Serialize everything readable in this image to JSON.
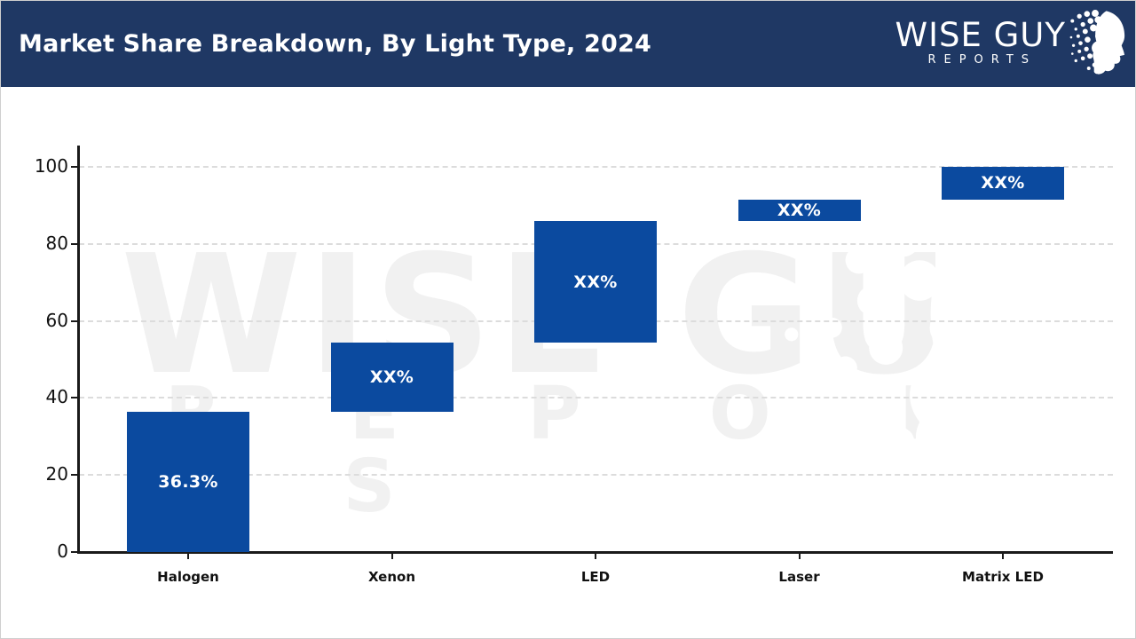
{
  "header": {
    "title": "Market Share Breakdown, By Light Type, 2024",
    "brand": {
      "line1": "WISE GUY",
      "line2": "REPORTS"
    }
  },
  "watermark": {
    "line1": "WISE GUY",
    "line2": "R E P O R T S"
  },
  "colors": {
    "header_bg": "#1f3864",
    "bar": "#0b4a9f",
    "grid": "#dcdcdc",
    "axis": "#1a1a1a",
    "watermark": "#f1f1f1",
    "bar_label_text": "#ffffff"
  },
  "chart_data": {
    "type": "bar",
    "subtype": "waterfall",
    "title": "Market Share Breakdown, By Light Type, 2024",
    "xlabel": "",
    "ylabel": "",
    "categories": [
      "Halogen",
      "Xenon",
      "LED",
      "Laser",
      "Matrix LED"
    ],
    "bars": [
      {
        "category": "Halogen",
        "start": 0,
        "end": 36.3,
        "value": 36.3,
        "label": "36.3%"
      },
      {
        "category": "Xenon",
        "start": 36.3,
        "end": 54.3,
        "value": 18.0,
        "label": "XX%"
      },
      {
        "category": "LED",
        "start": 54.3,
        "end": 86.0,
        "value": 31.7,
        "label": "XX%"
      },
      {
        "category": "Laser",
        "start": 86.0,
        "end": 91.5,
        "value": 5.5,
        "label": "XX%"
      },
      {
        "category": "Matrix LED",
        "start": 91.5,
        "end": 100.0,
        "value": 8.5,
        "label": "XX%"
      }
    ],
    "ylim": [
      0,
      100
    ],
    "yticks": [
      0,
      20,
      40,
      60,
      80,
      100
    ],
    "grid": "horizontal-dashed",
    "legend": "none"
  }
}
